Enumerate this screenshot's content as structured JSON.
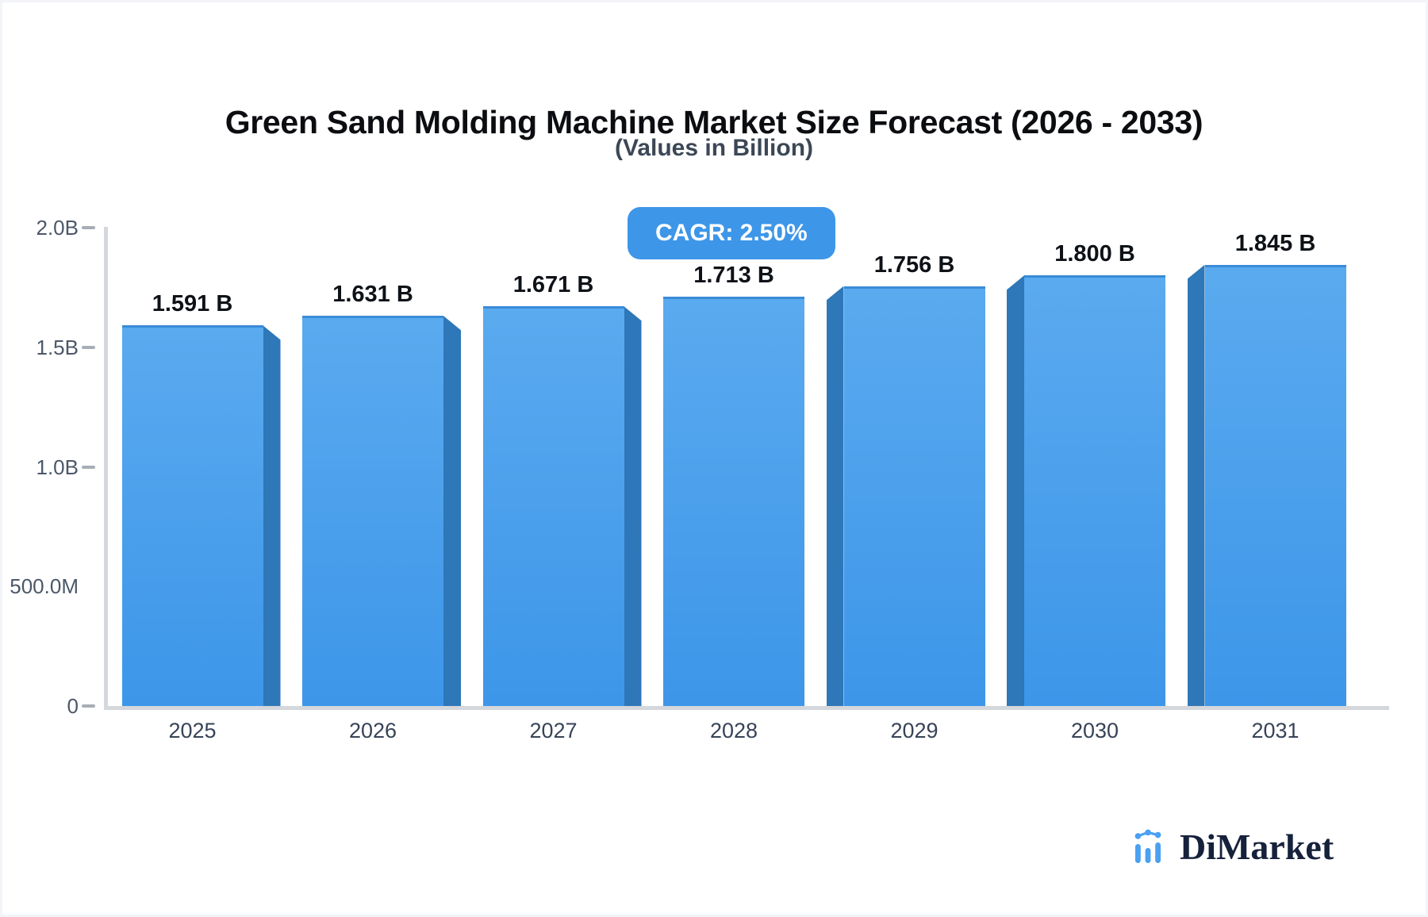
{
  "chart_data": {
    "type": "bar",
    "title": "Green Sand Molding Machine Market Size Forecast (2026 - 2033)",
    "subtitle": "(Values in Billion)",
    "annotation": {
      "cagr_label": "CAGR: 2.50%"
    },
    "categories": [
      "2025",
      "2026",
      "2027",
      "2028",
      "2029",
      "2030",
      "2031"
    ],
    "values": [
      1.591,
      1.631,
      1.671,
      1.713,
      1.756,
      1.8,
      1.845
    ],
    "value_labels": [
      "1.591 B",
      "1.631 B",
      "1.671 B",
      "1.713 B",
      "1.756 B",
      "1.800 B",
      "1.845 B"
    ],
    "xlabel": "",
    "ylabel": "",
    "ylim": [
      0,
      2.0
    ],
    "y_ticks": [
      {
        "label": "2.0B",
        "value": 2.0,
        "dash": true
      },
      {
        "label": "1.5B",
        "value": 1.5,
        "dash": true
      },
      {
        "label": "1.0B",
        "value": 1.0,
        "dash": true
      },
      {
        "label": "500.0M",
        "value": 0.5,
        "dash": false
      },
      {
        "label": "0",
        "value": 0.0,
        "dash": true
      }
    ],
    "grid": false,
    "legend": false,
    "bar_style": "3d-extruded"
  },
  "colors": {
    "bar_light_top": "#5AAAEF",
    "bar_light_bottom": "#3D96E9",
    "bar_top_edge": "#3A8BD8",
    "bar_dark": "#2E77B8",
    "badge_bg": "#3D96E8",
    "axis_line": "#D4D7DC",
    "tick_text": "#4C5868",
    "year_text": "#374357",
    "value_text": "#0E1217",
    "title_text": "#0B0D10",
    "subtitle_text": "#3C4756",
    "logo_navy": "#16213B",
    "logo_blue": "#4AA0F3"
  },
  "brand": {
    "name": "DiMarket",
    "icon": "bar-line-chart-icon"
  }
}
